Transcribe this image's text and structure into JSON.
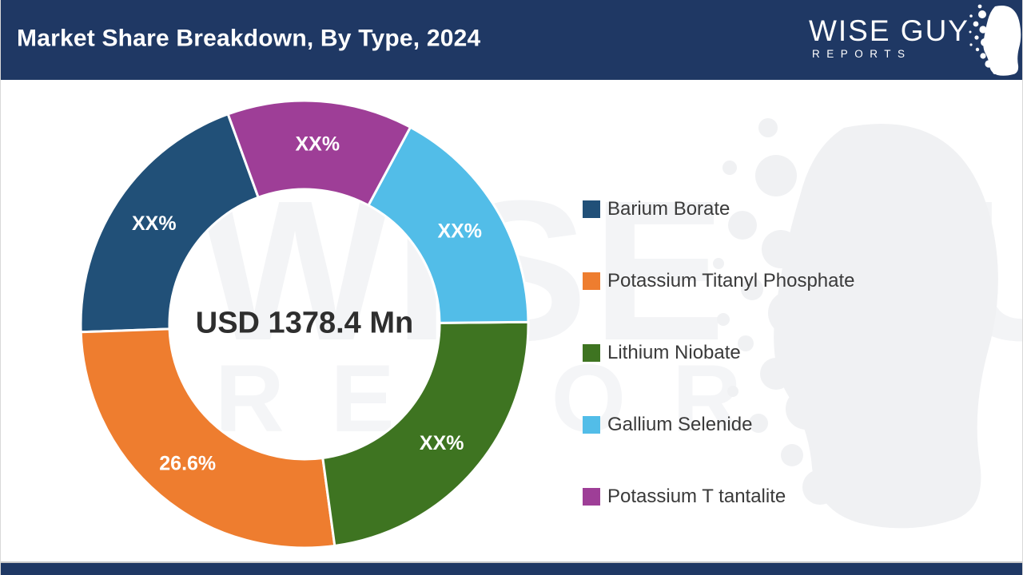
{
  "header": {
    "title": "Market Share Breakdown, By Type, 2024",
    "logo": {
      "line1": "WISE GUY",
      "line2": "REPORTS"
    },
    "bg_color": "#1f3864"
  },
  "watermark": {
    "line1": "WISE GUY",
    "line2": "REPORTS"
  },
  "chart_data": {
    "type": "pie",
    "subtype": "donut",
    "title": "Market Share Breakdown, By Type, 2024",
    "center_label": "USD 1378.4 Mn",
    "total_value": "USD 1378.4 Mn",
    "start_angle_deg": 110,
    "direction": "counterclockwise",
    "legend_position": "right",
    "series": [
      {
        "name": "Barium Borate",
        "color": "#215078",
        "share_pct": 20.0,
        "label": "XX%"
      },
      {
        "name": "Potassium Titanyl Phosphate",
        "color": "#ee7d2f",
        "share_pct": 26.6,
        "label": "26.6%"
      },
      {
        "name": "Lithium Niobate",
        "color": "#3e7421",
        "share_pct": 23.0,
        "label": "XX%"
      },
      {
        "name": "Gallium Selenide",
        "color": "#52bde8",
        "share_pct": 17.0,
        "label": "XX%"
      },
      {
        "name": "Potassium T tantalite",
        "color": "#9e3e97",
        "share_pct": 13.4,
        "label": "XX%"
      }
    ]
  }
}
